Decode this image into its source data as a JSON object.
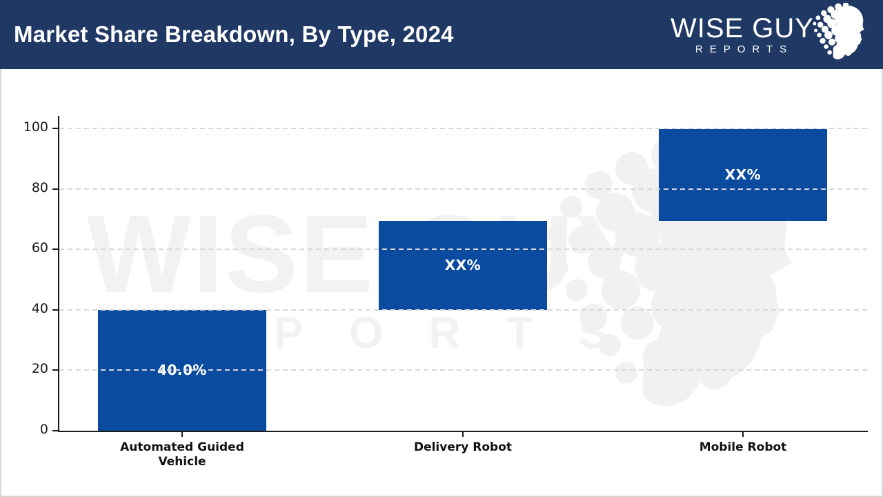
{
  "header": {
    "title": "Market Share Breakdown, By Type, 2024",
    "bg_color": "#1f3864",
    "logo": {
      "line1": "WISE GUY",
      "line2": "REPORTS"
    }
  },
  "watermark": {
    "line1": "WISE GUY",
    "line2": "REPORTS"
  },
  "chart_data": {
    "type": "bar",
    "subtype": "floating-waterfall-columns",
    "title": "Market Share Breakdown, By Type, 2024",
    "categories": [
      "Automated Guided\nVehicle",
      "Delivery Robot",
      "Mobile Robot"
    ],
    "bars": [
      {
        "category": "Automated Guided\nVehicle",
        "start": 0,
        "end": 40,
        "label": "40.0%"
      },
      {
        "category": "Delivery Robot",
        "start": 40,
        "end": 69.5,
        "label": "XX%"
      },
      {
        "category": "Mobile Robot",
        "start": 69.5,
        "end": 99.7,
        "label": "XX%"
      }
    ],
    "bar_color": "#0a4b9f",
    "label_color": "#ffffff",
    "xlabel": "",
    "ylabel": "",
    "ylim": [
      0,
      100
    ],
    "yticks": [
      0,
      20,
      40,
      60,
      80,
      100
    ],
    "grid": "horizontal dashed, drawn over bars",
    "legend": "none"
  }
}
